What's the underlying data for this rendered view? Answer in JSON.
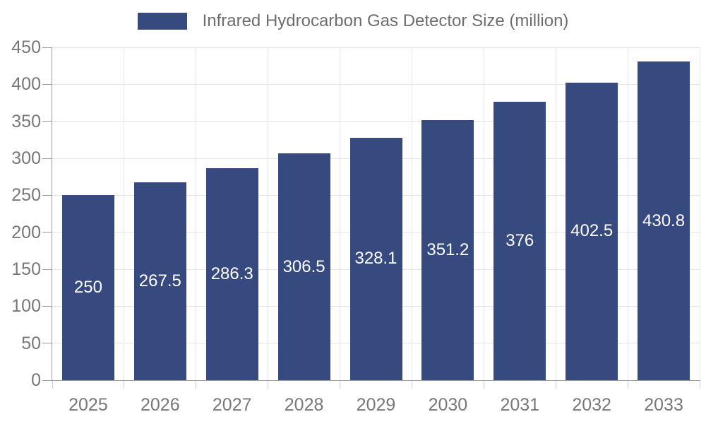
{
  "chart_data": {
    "type": "bar",
    "title": "Infrared Hydrocarbon Gas Detector Size (million)",
    "categories": [
      "2025",
      "2026",
      "2027",
      "2028",
      "2029",
      "2030",
      "2031",
      "2032",
      "2033"
    ],
    "series": [
      {
        "name": "Infrared Hydrocarbon Gas Detector Size (million)",
        "values": [
          250,
          267.5,
          286.3,
          306.5,
          328.1,
          351.2,
          376,
          402.5,
          430.8
        ]
      }
    ],
    "value_labels": [
      "250",
      "267.5",
      "286.3",
      "306.5",
      "328.1",
      "351.2",
      "376",
      "402.5",
      "430.8"
    ],
    "xlabel": "",
    "ylabel": "",
    "ylim": [
      0,
      450
    ],
    "ytick_step": 50,
    "yticks": [
      "0",
      "50",
      "100",
      "150",
      "200",
      "250",
      "300",
      "350",
      "400",
      "450"
    ],
    "grid": true,
    "legend_position": "top-center",
    "colors": {
      "bar": "#374a80",
      "grid": "#e4e4e4",
      "axis": "#9c9c9c",
      "x_boundary_tick": "#c9c9c9",
      "axis_label": "#787878",
      "title": "#6e6e6e",
      "value_label": "#ffffff",
      "background": "#ffffff"
    }
  }
}
